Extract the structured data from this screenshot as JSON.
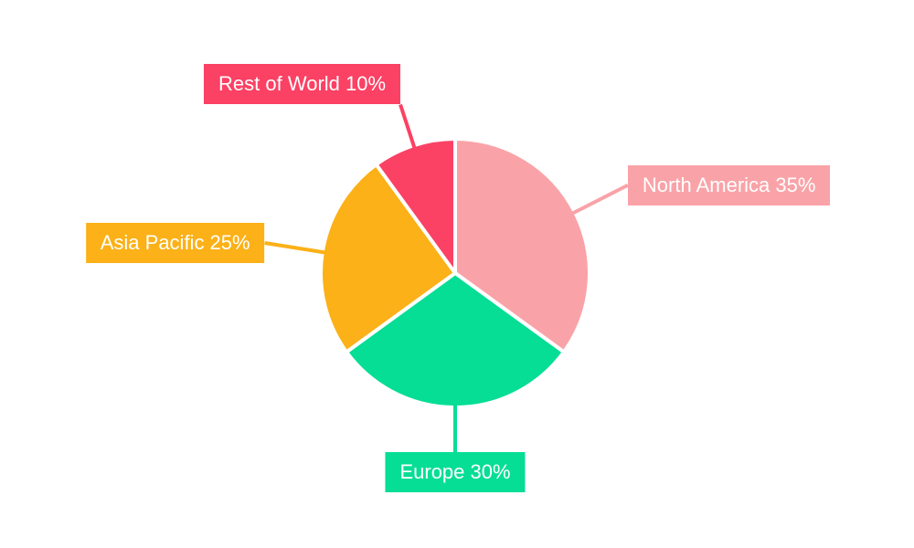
{
  "page": {
    "background_color": "#ffffff"
  },
  "chart_data": {
    "type": "pie",
    "title": "",
    "legend_position": "none",
    "direction": "clockwise",
    "start_angle_deg": 0,
    "slice_gap_color": "#ffffff",
    "label_text_color": "#ffffff",
    "series": [
      {
        "label": "North America",
        "value": 35,
        "color": "#F9A3A8",
        "display": "North America 35%"
      },
      {
        "label": "Europe",
        "value": 30,
        "color": "#06DE95",
        "display": "Europe 30%"
      },
      {
        "label": "Asia Pacific",
        "value": 25,
        "color": "#FBB117",
        "display": "Asia Pacific 25%"
      },
      {
        "label": "Rest of World",
        "value": 10,
        "color": "#FB4164",
        "display": "Rest of World 10%"
      }
    ]
  }
}
